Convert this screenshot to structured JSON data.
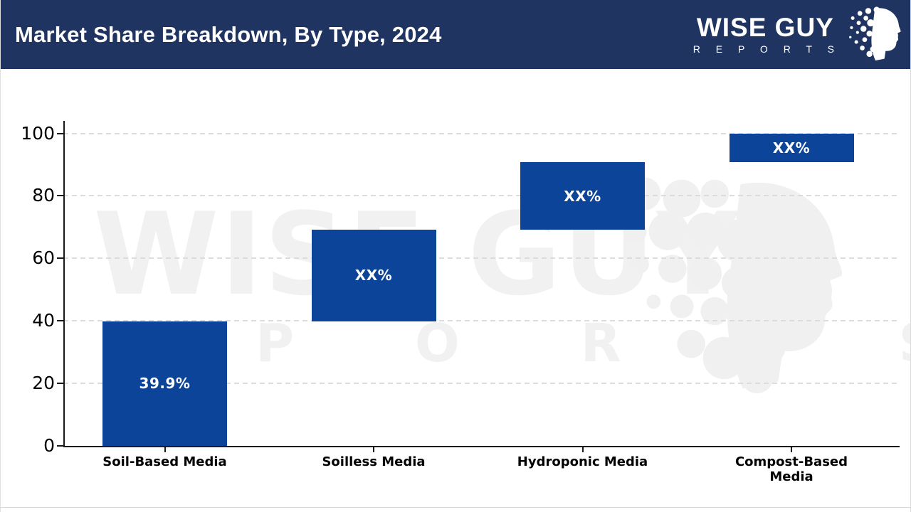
{
  "header": {
    "title": "Market Share Breakdown, By Type, 2024",
    "bg_color": "#1f3461",
    "logo": {
      "line1": "WISE GUY",
      "line2": "R E P O R T S",
      "head_icon": "dotted-head-profile-icon"
    }
  },
  "watermark": {
    "line1": "WISE GUY",
    "line2": "P O R T S",
    "color": "#f1f1f1"
  },
  "chart_data": {
    "type": "bar",
    "variant": "waterfall",
    "title": "Market Share Breakdown, By Type, 2024",
    "categories": [
      "Soil-Based Media",
      "Soilless Media",
      "Hydroponic Media",
      "Compost-Based Media"
    ],
    "segments": [
      {
        "category": "Soil-Based Media",
        "start": 0,
        "end": 39.9,
        "label": "39.9%"
      },
      {
        "category": "Soilless Media",
        "start": 39.9,
        "end": 69.2,
        "label": "XX%"
      },
      {
        "category": "Hydroponic Media",
        "start": 69.2,
        "end": 90.7,
        "label": "XX%"
      },
      {
        "category": "Compost-Based Media",
        "start": 90.7,
        "end": 100,
        "label": "XX%"
      }
    ],
    "y_ticks": [
      0,
      20,
      40,
      60,
      80,
      100
    ],
    "ylim": [
      0,
      104
    ],
    "xlabel": "",
    "ylabel": "",
    "grid": "horizontal-dashed",
    "legend": false,
    "bar_color": "#0c4499",
    "bar_label_color": "#ffffff",
    "axis_color": "#1a1a1a",
    "grid_color": "#dcdcdc"
  }
}
